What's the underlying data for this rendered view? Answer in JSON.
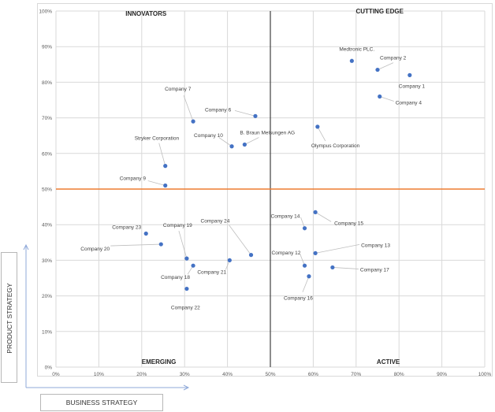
{
  "chart_data": {
    "type": "scatter",
    "x_ticks": [
      "0%",
      "10%",
      "20%",
      "30%",
      "40%",
      "50%",
      "60%",
      "70%",
      "80%",
      "90%",
      "100%"
    ],
    "y_ticks": [
      "0%",
      "10%",
      "20%",
      "30%",
      "40%",
      "50%",
      "60%",
      "70%",
      "80%",
      "90%",
      "100%"
    ],
    "xlim": [
      0,
      100
    ],
    "ylim": [
      0,
      100
    ],
    "xlabel": "BUSINESS STRATEGY",
    "ylabel": "PRODUCT STRATEGY",
    "grid": true,
    "quadrants": {
      "top_left": "INNOVATORS",
      "top_right": "CUTTING EDGE",
      "bottom_left": "EMERGING",
      "bottom_right": "ACTIVE"
    },
    "reference_lines": {
      "x": 50,
      "y": 50,
      "y_line_color": "#ed7d31",
      "x_line_color": "#404040"
    },
    "point_color": "#4472c4",
    "points": [
      {
        "label": "Medtronic PLC.",
        "x": 69,
        "y": 86
      },
      {
        "label": "Company 2",
        "x": 75,
        "y": 83.5
      },
      {
        "label": "Company 1",
        "x": 82.5,
        "y": 82
      },
      {
        "label": "Company 4",
        "x": 75.5,
        "y": 76
      },
      {
        "label": "Olympus Corporation",
        "x": 61,
        "y": 67.5
      },
      {
        "label": "Company 7",
        "x": 32,
        "y": 69
      },
      {
        "label": "Company 6",
        "x": 46.5,
        "y": 70.5
      },
      {
        "label": "Company 10",
        "x": 41,
        "y": 62
      },
      {
        "label": "B. Braun Melsungen AG",
        "x": 44,
        "y": 62.5
      },
      {
        "label": "Stryker Corporation",
        "x": 25.5,
        "y": 56.5
      },
      {
        "label": "Company 9",
        "x": 25.5,
        "y": 51
      },
      {
        "label": "Company 23",
        "x": 21,
        "y": 37.5
      },
      {
        "label": "Company 20",
        "x": 24.5,
        "y": 34.5
      },
      {
        "label": "Company 19",
        "x": 30.5,
        "y": 30.5
      },
      {
        "label": "Company 18",
        "x": 32,
        "y": 28.5
      },
      {
        "label": "Company 21",
        "x": 40.5,
        "y": 30
      },
      {
        "label": "Company 24",
        "x": 45.5,
        "y": 31.5
      },
      {
        "label": "Company 22",
        "x": 30.5,
        "y": 22
      },
      {
        "label": "Company 14",
        "x": 58,
        "y": 39
      },
      {
        "label": "Company 15",
        "x": 60.5,
        "y": 43.5
      },
      {
        "label": "Company 12",
        "x": 58,
        "y": 28.5
      },
      {
        "label": "Company 13",
        "x": 60.5,
        "y": 32
      },
      {
        "label": "Company 17",
        "x": 64.5,
        "y": 28
      },
      {
        "label": "Company 16",
        "x": 59,
        "y": 25.5
      }
    ]
  }
}
